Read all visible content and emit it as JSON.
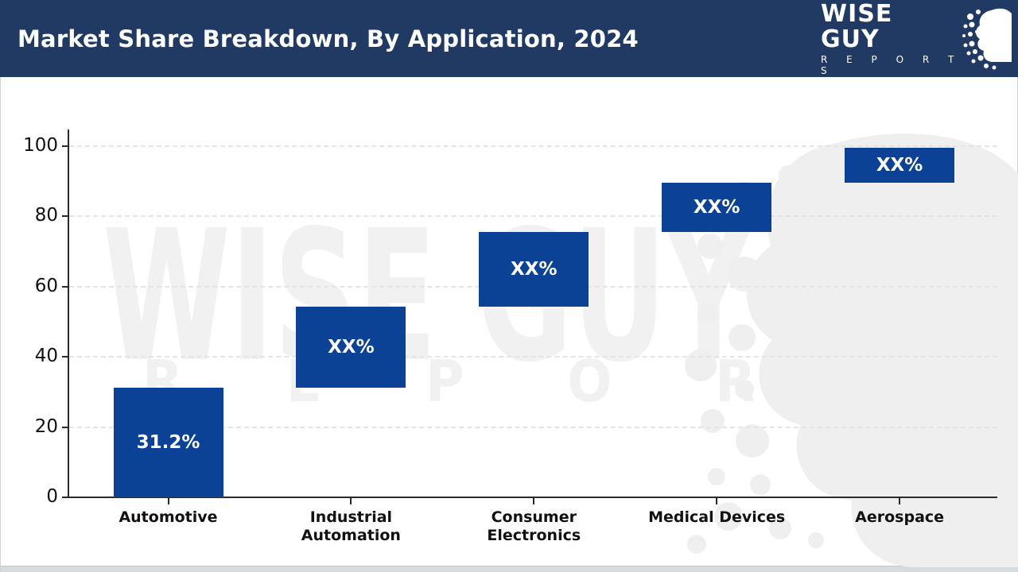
{
  "header": {
    "title": "Market Share Breakdown, By Application, 2024",
    "logo": {
      "line1": "WISE GUY",
      "line2": "R E P O R T S"
    }
  },
  "watermark": {
    "line1": "WISE GUY",
    "line2": "R E P O R T S"
  },
  "chart_data": {
    "type": "bar",
    "subtype": "waterfall",
    "title": "Market Share Breakdown, By Application, 2024",
    "categories": [
      "Automotive",
      "Industrial\nAutomation",
      "Consumer\nElectronics",
      "Medical Devices",
      "Aerospace"
    ],
    "segments": [
      {
        "category": "Automotive",
        "start": 0.0,
        "end": 31.2,
        "label": "31.2%"
      },
      {
        "category": "Industrial Automation",
        "start": 31.2,
        "end": 54.4,
        "label": "XX%"
      },
      {
        "category": "Consumer Electronics",
        "start": 54.4,
        "end": 75.5,
        "label": "XX%"
      },
      {
        "category": "Medical Devices",
        "start": 75.5,
        "end": 89.7,
        "label": "XX%"
      },
      {
        "category": "Aerospace",
        "start": 89.7,
        "end": 99.6,
        "label": "XX%"
      }
    ],
    "xlabel": "",
    "ylabel": "",
    "ylim": [
      0,
      105
    ],
    "yticks": [
      0,
      20,
      40,
      60,
      80,
      100
    ],
    "grid": "horizontal-dashed",
    "legend": "none",
    "bar_color": "#0b4295",
    "bar_label_color": "#ffffff",
    "axis_color": "#2a2a2a",
    "gridline_color": "#e4e4e4",
    "header_bg_color": "#203a64",
    "watermark_color": "#f1f1f1"
  }
}
